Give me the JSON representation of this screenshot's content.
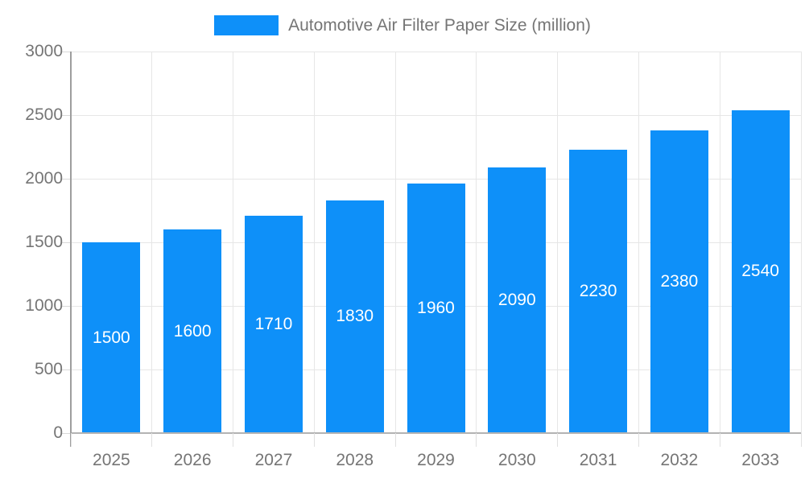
{
  "chart_data": {
    "type": "bar",
    "title": "Automotive Air Filter Paper Size (million)",
    "categories": [
      "2025",
      "2026",
      "2027",
      "2028",
      "2029",
      "2030",
      "2031",
      "2032",
      "2033"
    ],
    "series": [
      {
        "name": "Automotive Air Filter Paper Size (million)",
        "values": [
          1500,
          1600,
          1710,
          1830,
          1960,
          2090,
          2230,
          2380,
          2540
        ]
      }
    ],
    "xlabel": "",
    "ylabel": "",
    "ylim": [
      0,
      3000
    ],
    "ytick_step": 500,
    "ytick_labels": [
      "0",
      "500",
      "1000",
      "1500",
      "2000",
      "2500",
      "3000"
    ],
    "grid": true,
    "legend_position": "top",
    "value_labels": "inside-center"
  },
  "colors": {
    "bar": "#0e90f9",
    "hgrid": "#e6e6e6",
    "vgrid": "#e6e6e6",
    "axis_line": "#9e9e9e",
    "baseline": "#b3b3b3",
    "tick": "#d9d9d9",
    "axis_text": "#757575",
    "legend_text": "#757575",
    "bar_value_text": "#ffffff",
    "background": "#ffffff"
  }
}
